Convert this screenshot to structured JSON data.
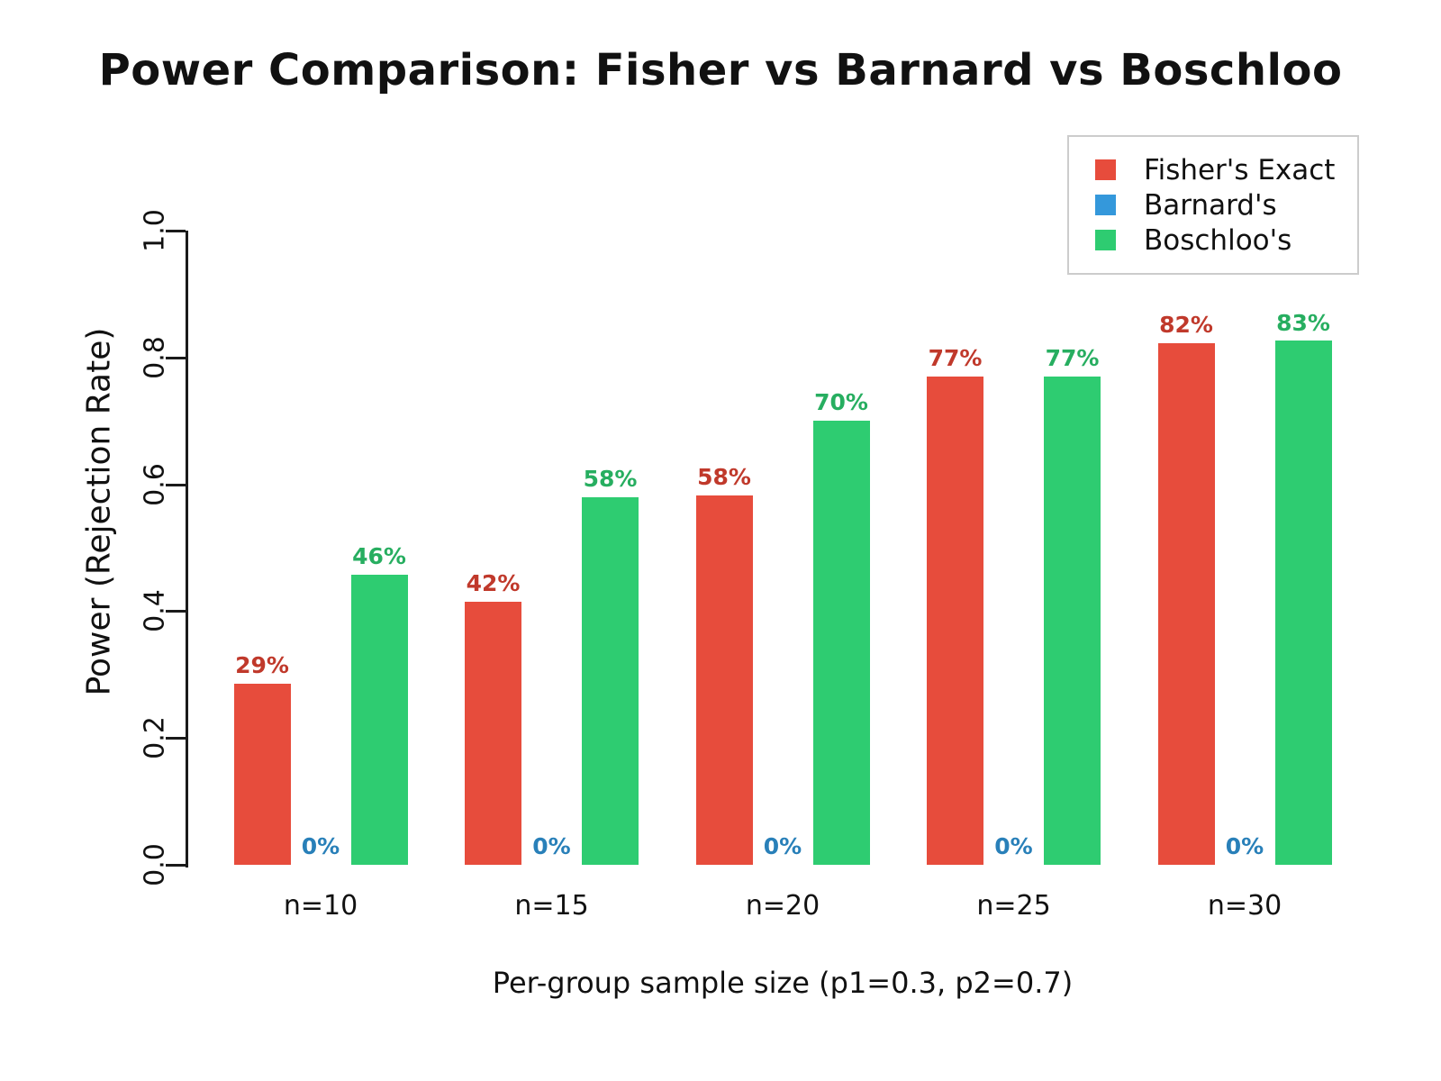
{
  "chart_data": {
    "type": "bar",
    "title": "Power Comparison: Fisher vs Barnard vs Boschloo",
    "xlabel": "Per-group sample size (p1=0.3, p2=0.7)",
    "ylabel": "Power (Rejection Rate)",
    "categories": [
      "n=10",
      "n=15",
      "n=20",
      "n=25",
      "n=30"
    ],
    "series": [
      {
        "name": "Fisher's Exact",
        "color": "#e74c3c",
        "label_color": "#c0392b",
        "values": [
          0.285,
          0.415,
          0.583,
          0.77,
          0.822
        ],
        "labels": [
          "29%",
          "42%",
          "58%",
          "77%",
          "82%"
        ]
      },
      {
        "name": "Barnard's",
        "color": "#3498db",
        "label_color": "#2980b9",
        "values": [
          0,
          0,
          0,
          0,
          0
        ],
        "labels": [
          "0%",
          "0%",
          "0%",
          "0%",
          "0%"
        ]
      },
      {
        "name": "Boschloo's",
        "color": "#2ecc71",
        "label_color": "#27ae60",
        "values": [
          0.457,
          0.58,
          0.7,
          0.77,
          0.826
        ],
        "labels": [
          "46%",
          "58%",
          "70%",
          "77%",
          "83%"
        ]
      }
    ],
    "yticks": [
      "0.0",
      "0.2",
      "0.4",
      "0.6",
      "0.8",
      "1.0"
    ],
    "ylim": [
      0,
      1
    ],
    "grid": false,
    "legend_position": "top-right"
  }
}
